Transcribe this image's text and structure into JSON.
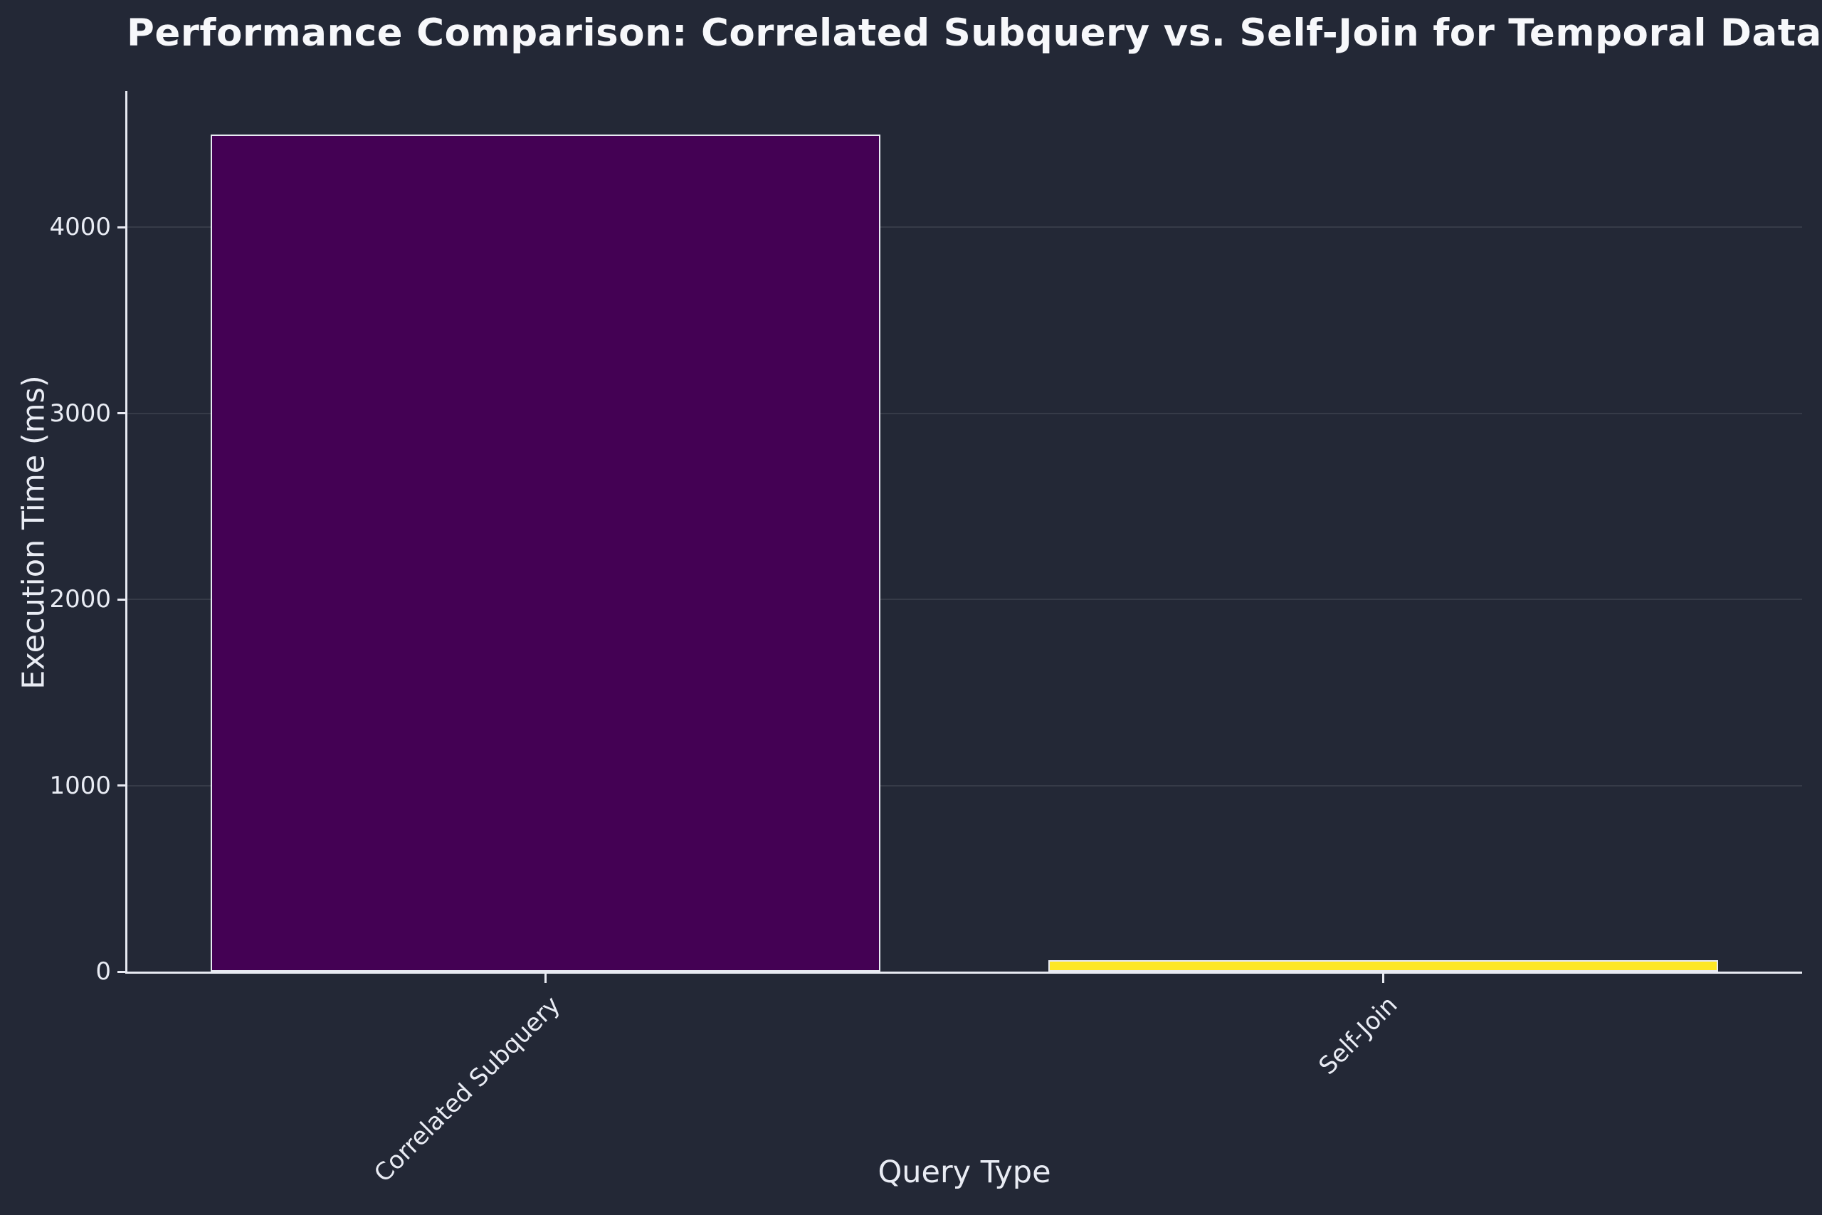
{
  "title": "Performance Comparison: Correlated Subquery vs. Self-Join for Temporal Data",
  "chart_data": {
    "type": "bar",
    "title": "Performance Comparison: Correlated Subquery vs. Self-Join for Temporal Data",
    "xlabel": "Query Type",
    "ylabel": "Execution Time (ms)",
    "categories": [
      "Correlated Subquery",
      "Self-Join"
    ],
    "values": [
      4500,
      60
    ],
    "bar_colors": [
      "#440154",
      "#fde725"
    ],
    "bar_edge_color": "#e8eaf2",
    "yticks": [
      0,
      1000,
      2000,
      3000,
      4000
    ],
    "ylim": [
      0,
      4725
    ],
    "grid": true,
    "legend": false,
    "x_tick_rotation_deg": 45,
    "background_color": "#232836",
    "axis_color": "#e8eaf2",
    "text_color": "#e9ecf4",
    "grid_color": "rgba(255,255,255,0.09)"
  }
}
